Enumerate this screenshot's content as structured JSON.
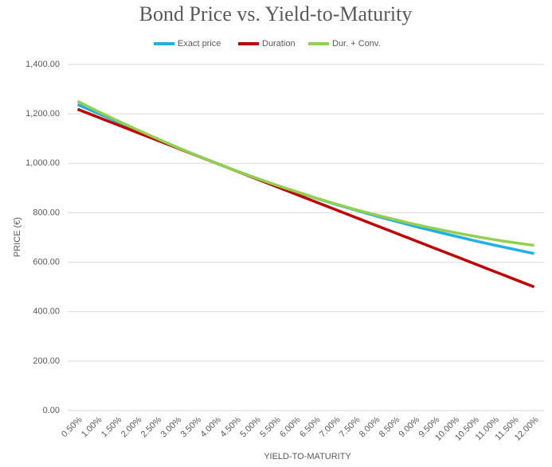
{
  "chart_data": {
    "type": "line",
    "title": "Bond Price vs. Yield-to-Maturity",
    "x_label": "YIELD-TO-MATURITY",
    "y_label": "PRICE (€)",
    "categories": [
      "0.50%",
      "1.00%",
      "1.50%",
      "2.00%",
      "2.50%",
      "3.00%",
      "3.50%",
      "4.00%",
      "4.50%",
      "5.00%",
      "5.50%",
      "6.00%",
      "6.50%",
      "7.00%",
      "7.50%",
      "8.00%",
      "8.50%",
      "9.00%",
      "9.50%",
      "10.00%",
      "10.50%",
      "11.00%",
      "11.50%",
      "12.00%"
    ],
    "ylim": [
      0,
      1400
    ],
    "yticks": [
      {
        "value": 0,
        "label": "0.00"
      },
      {
        "value": 200,
        "label": "200.00"
      },
      {
        "value": 400,
        "label": "400.00"
      },
      {
        "value": 600,
        "label": "600.00"
      },
      {
        "value": 800,
        "label": "800.00"
      },
      {
        "value": 1000,
        "label": "1,000.00"
      },
      {
        "value": 1200,
        "label": "1,200.00"
      },
      {
        "value": 1400,
        "label": "1,400.00"
      }
    ],
    "grid": true,
    "legend": "top",
    "series": [
      {
        "name": "Exact price",
        "color": "#1fb0e6",
        "values": [
          1238,
          1203,
          1168,
          1133,
          1099,
          1065,
          1032,
          1000,
          969,
          940,
          912,
          885,
          859,
          834,
          811,
          788,
          766,
          745,
          725,
          706,
          687,
          669,
          652,
          635
        ]
      },
      {
        "name": "Duration",
        "color": "#c00000",
        "values": [
          1218.75,
          1187.5,
          1156.25,
          1125,
          1093.75,
          1062.5,
          1031.25,
          1000,
          968.75,
          937.5,
          906.25,
          875,
          843.75,
          812.5,
          781.25,
          750,
          718.75,
          687.5,
          656.25,
          625,
          593.75,
          562.5,
          531.25,
          500
        ]
      },
      {
        "name": "Dur. + Conv.",
        "color": "#92d050",
        "values": [
          1251,
          1211,
          1173,
          1136,
          1100,
          1065,
          1032,
          1000,
          969,
          940,
          912,
          886,
          860,
          836,
          813,
          792,
          772,
          753,
          736,
          720,
          705,
          691,
          679,
          668
        ]
      }
    ]
  }
}
